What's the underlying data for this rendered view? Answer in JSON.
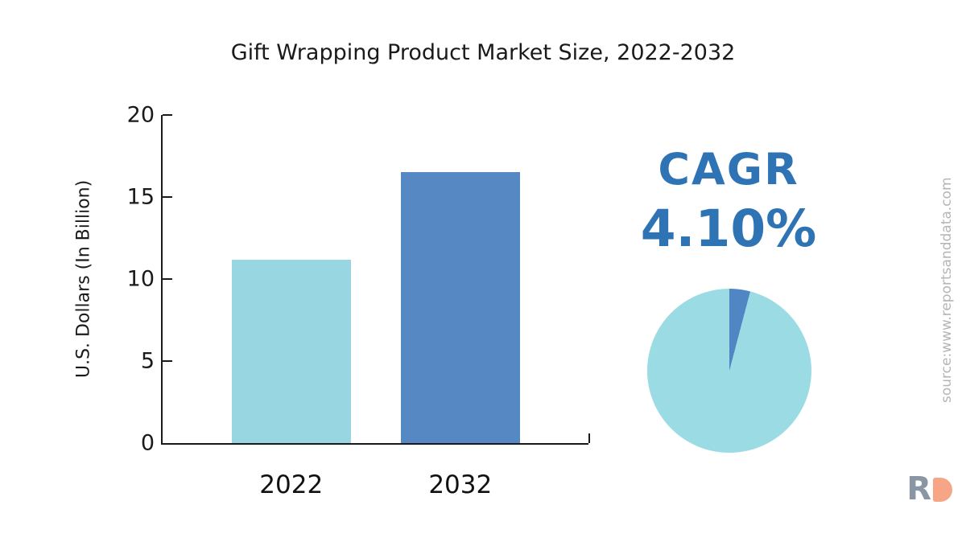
{
  "title": "Gift Wrapping Product Market Size, 2022-2032",
  "chart_data": [
    {
      "type": "bar",
      "title": "Gift Wrapping Product Market Size, 2022-2032",
      "categories": [
        "2022",
        "2032"
      ],
      "values": [
        11.2,
        16.5
      ],
      "xlabel": "",
      "ylabel": "U.S. Dollars (In Billion)",
      "ylim": [
        0,
        20
      ],
      "yticks": [
        0,
        5,
        10,
        15,
        20
      ],
      "bar_colors": [
        "#98d7e2",
        "#5689c4"
      ],
      "grid": false,
      "legend": false
    },
    {
      "type": "pie",
      "values": [
        4.1,
        95.9
      ],
      "colors": [
        "#5186c5",
        "#9bdbe4"
      ],
      "annotation": "CAGR 4.10%",
      "start_angle_deg": 0
    }
  ],
  "cagr": {
    "label": "CAGR",
    "value": "4.10%",
    "color": "#2e74b5"
  },
  "source": {
    "text": "source:www.reportsanddata.com",
    "color": "#b5b5b5"
  },
  "logo": {
    "letter": "R",
    "mark": "D",
    "letter_color": "#8b96a5",
    "mark_color": "#f6a687"
  }
}
